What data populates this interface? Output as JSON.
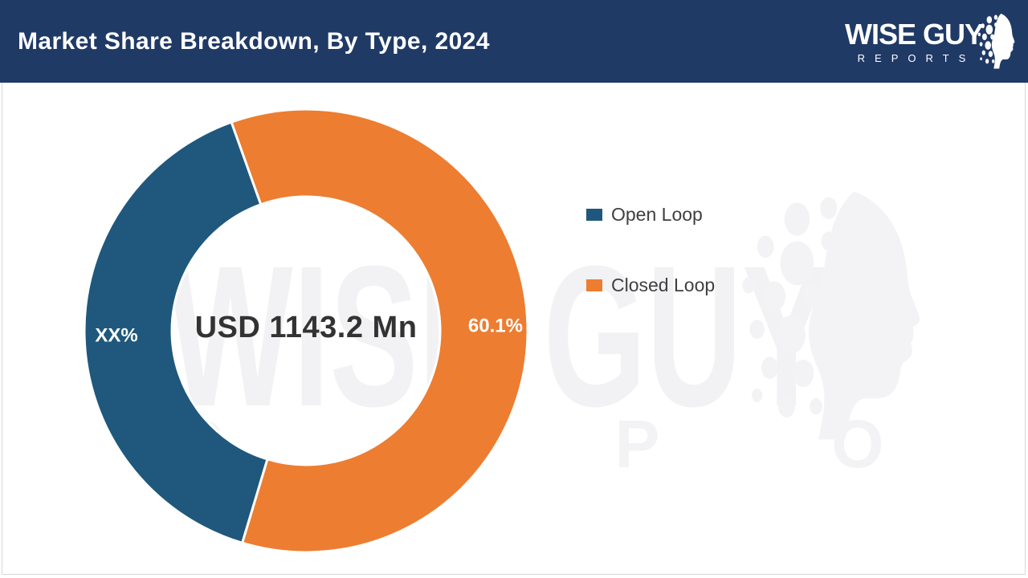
{
  "header": {
    "title": "Market Share Breakdown, By Type, 2024",
    "logo": {
      "wordmark": "WISE GUY",
      "tagline": "REPORTS"
    }
  },
  "watermark": {
    "wordmark": "WISE GUY",
    "tagline": "R E P O R T S"
  },
  "chart_data": {
    "type": "pie",
    "subtype": "donut",
    "title": "Market Share Breakdown, By Type, 2024",
    "center_label": "USD 1143.2 Mn",
    "start_angle_deg": 196.7,
    "inner_radius_ratio": 0.605,
    "legend_position": "right",
    "series": [
      {
        "name": "Open Loop",
        "label": "XX%",
        "value_pct": 39.9,
        "color": "#1F587C",
        "label_color": "#FFFFFF"
      },
      {
        "name": "Closed Loop",
        "label": "60.1%",
        "value_pct": 60.1,
        "color": "#ED7D31",
        "label_color": "#FFFFFF"
      }
    ]
  },
  "legend": {
    "items": [
      {
        "label": "Open Loop",
        "color": "#1F587C"
      },
      {
        "label": "Closed Loop",
        "color": "#ED7D31"
      }
    ]
  },
  "colors": {
    "header_bg": "#203A66",
    "card_border": "#D8D8D8",
    "center_text": "#333333",
    "legend_text": "#404040",
    "watermark": "#F2F2F4"
  }
}
